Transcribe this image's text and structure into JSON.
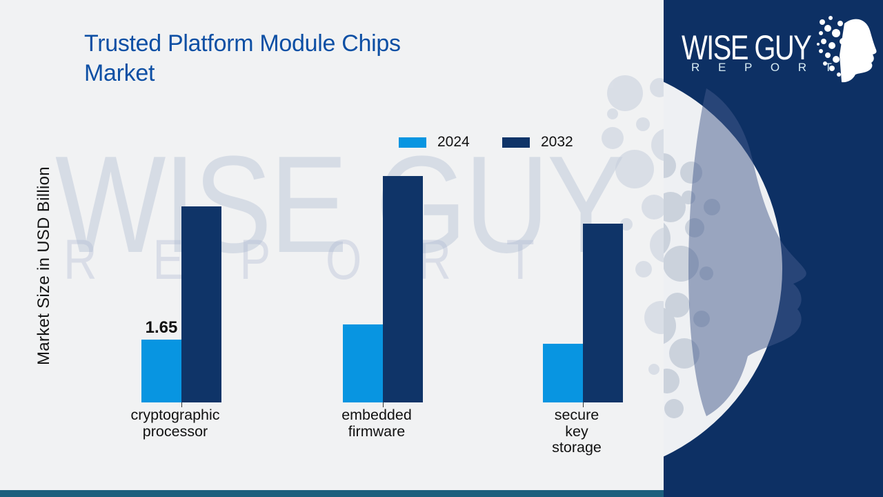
{
  "title": {
    "line1": "Trusted Platform Module Chips",
    "line2": "Market"
  },
  "ylabel": "Market Size in USD Billion",
  "legend": [
    {
      "label": "2024",
      "color": "#0895e1"
    },
    {
      "label": "2032",
      "color": "#0f3468"
    }
  ],
  "watermark": {
    "line1": "WISE GUY",
    "line2": "REPORTS"
  },
  "logo": {
    "name": "WISE GUY",
    "sub": "R E P O R T S"
  },
  "colors": {
    "background": "#f1f2f3",
    "title": "#0d4fa4",
    "bar_2024": "#0895e1",
    "bar_2032": "#0f3468",
    "panel": "#0d3064",
    "bottom_strip": "#1c5f7d"
  },
  "chart_data": {
    "type": "bar",
    "title": "Trusted Platform Module Chips Market",
    "xlabel": "",
    "ylabel": "Market Size in USD Billion",
    "categories": [
      "cryptographic processor",
      "embedded firmware",
      "secure key storage"
    ],
    "categories_lines": [
      [
        "cryptographic",
        "processor"
      ],
      [
        "embedded",
        "firmware"
      ],
      [
        "secure",
        "key",
        "storage"
      ]
    ],
    "series": [
      {
        "name": "2024",
        "color": "#0895e1",
        "values": [
          1.65,
          2.05,
          1.55
        ]
      },
      {
        "name": "2032",
        "color": "#0f3468",
        "values": [
          5.15,
          5.95,
          4.7
        ]
      }
    ],
    "annotations": [
      {
        "series": "2024",
        "category_index": 0,
        "text": "1.65"
      }
    ],
    "ylim": [
      0,
      6.5
    ],
    "grid": false,
    "legend_position": "top"
  }
}
